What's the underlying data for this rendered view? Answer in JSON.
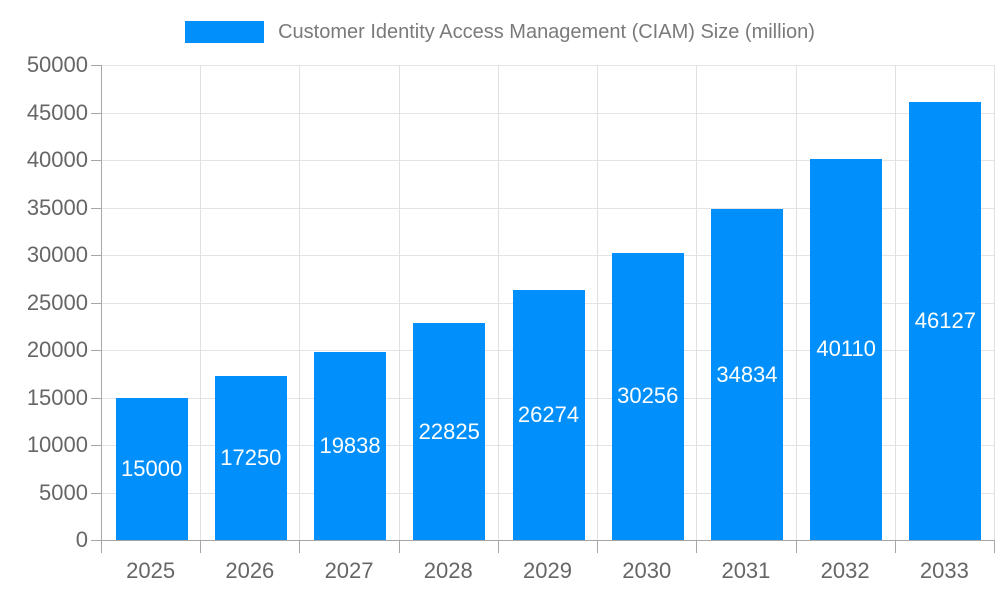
{
  "legend": {
    "label": "Customer Identity Access Management (CIAM) Size (million)",
    "marker_color": "#008FFB"
  },
  "chart_data": {
    "type": "bar",
    "title": "Customer Identity Access Management (CIAM) Size (million)",
    "categories": [
      "2025",
      "2026",
      "2027",
      "2028",
      "2029",
      "2030",
      "2031",
      "2032",
      "2033"
    ],
    "values": [
      15000,
      17250,
      19838,
      22825,
      26274,
      30256,
      34834,
      40110,
      46127
    ],
    "xlabel": "",
    "ylabel": "",
    "ylim": [
      0,
      50000
    ],
    "ytick_step": 5000,
    "grid": "on",
    "legend_position": "top",
    "value_labels": "inside-center"
  },
  "colors": {
    "bar": "#008FFB",
    "value_label": "#FFFFFF",
    "grid_horizontal": "#e4e4e4",
    "grid_vertical": "#e0e0e0",
    "axis": "#a6a6a6",
    "tick_label": "#666666",
    "legend_text": "#7a7a7a",
    "background": "#ffffff"
  }
}
